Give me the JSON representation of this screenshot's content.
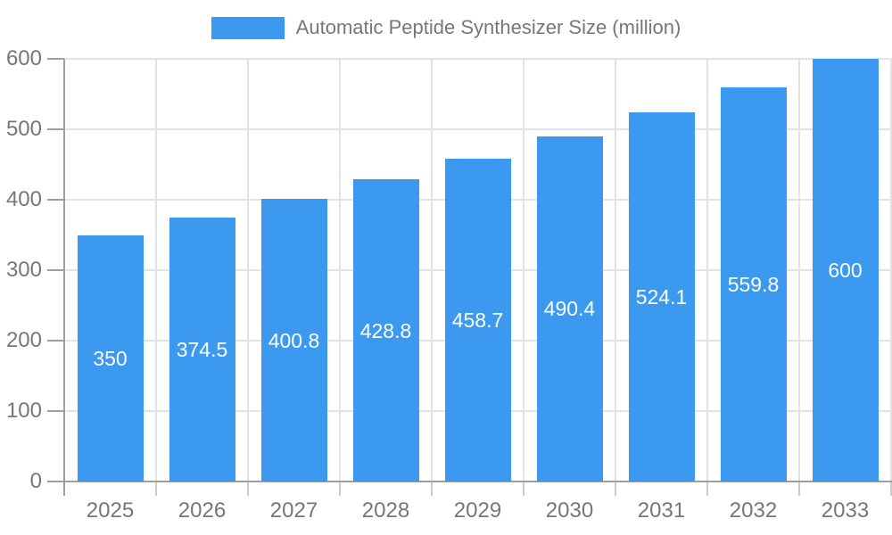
{
  "legend": {
    "label": "Automatic Peptide Synthesizer Size (million)"
  },
  "chart_data": {
    "type": "bar",
    "title": "Automatic Peptide Synthesizer Size (million)",
    "categories": [
      "2025",
      "2026",
      "2027",
      "2028",
      "2029",
      "2030",
      "2031",
      "2032",
      "2033"
    ],
    "values": [
      350,
      374.5,
      400.8,
      428.8,
      458.7,
      490.4,
      524.1,
      559.8,
      600
    ],
    "xlabel": "",
    "ylabel": "",
    "ylim": [
      0,
      600
    ],
    "yticks": [
      0,
      100,
      200,
      300,
      400,
      500,
      600
    ],
    "grid": true,
    "legend_position": "top-center",
    "value_label_position": "inside-center",
    "colors": {
      "bar": "#3b99f0",
      "grid": "#e3e3e3",
      "axis": "#9e9e9e",
      "tick": "#cccccc",
      "text": "#777777",
      "bar_label": "#ffffff",
      "background": "#ffffff"
    }
  }
}
